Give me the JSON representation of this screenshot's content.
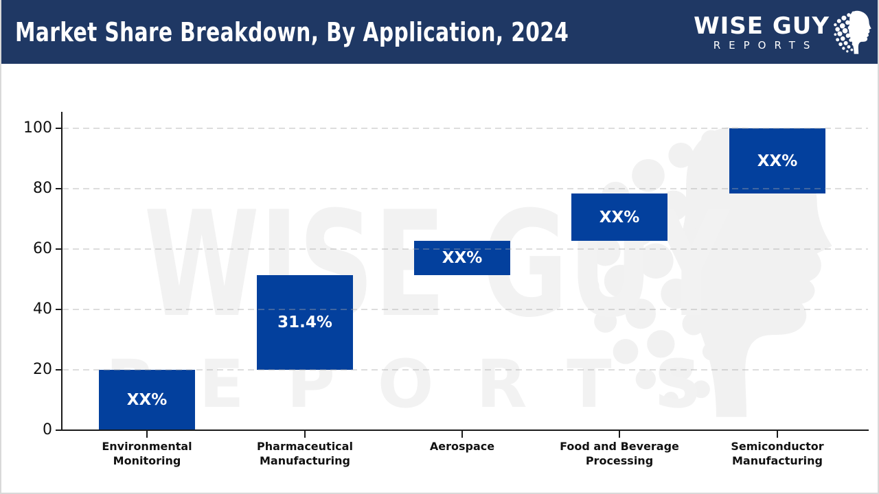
{
  "header": {
    "title": "Market Share Breakdown, By Application, 2024",
    "logo": {
      "brand_line1": "WISE GUY",
      "brand_line2": "REPORTS",
      "icon": "dotted-head-profile"
    }
  },
  "watermark": {
    "line1": "WISE GUY",
    "line2": "REPORTS",
    "icon": "dotted-head-profile"
  },
  "colors": {
    "header_bg": "#1f3864",
    "bar": "#03409d",
    "bar_label": "#ffffff",
    "axis": "#1a1a1a",
    "grid": "#dcdcdc",
    "watermark": "#f2f2f2",
    "page_border": "#d9d9d9"
  },
  "chart_data": {
    "type": "bar",
    "subtype": "waterfall",
    "title": "Market Share Breakdown, By Application, 2024",
    "xlabel": "",
    "ylabel": "",
    "ylim": [
      0,
      105
    ],
    "yticks": [
      0,
      20,
      40,
      60,
      80,
      100
    ],
    "grid": "horizontal dashed, drawn over bars",
    "legend": "none",
    "bar_color": "#03409d",
    "categories": [
      "Environmental Monitoring",
      "Pharmaceutical Manufacturing",
      "Aerospace",
      "Food and Beverage Processing",
      "Semiconductor Manufacturing"
    ],
    "category_lines": [
      [
        "Environmental",
        "Monitoring"
      ],
      [
        "Pharmaceutical",
        "Manufacturing"
      ],
      [
        "Aerospace"
      ],
      [
        "Food and Beverage",
        "Processing"
      ],
      [
        "Semiconductor",
        "Manufacturing"
      ]
    ],
    "segments": [
      {
        "category": "Environmental Monitoring",
        "start": 0,
        "end": 20,
        "value": 20,
        "label": "XX%"
      },
      {
        "category": "Pharmaceutical Manufacturing",
        "start": 20,
        "end": 51.4,
        "value": 31.4,
        "label": "31.4%"
      },
      {
        "category": "Aerospace",
        "start": 51.4,
        "end": 62.7,
        "value": 11.3,
        "label": "XX%"
      },
      {
        "category": "Food and Beverage Processing",
        "start": 62.7,
        "end": 78.4,
        "value": 15.7,
        "label": "XX%"
      },
      {
        "category": "Semiconductor Manufacturing",
        "start": 78.4,
        "end": 100,
        "value": 21.6,
        "label": "XX%"
      }
    ]
  }
}
